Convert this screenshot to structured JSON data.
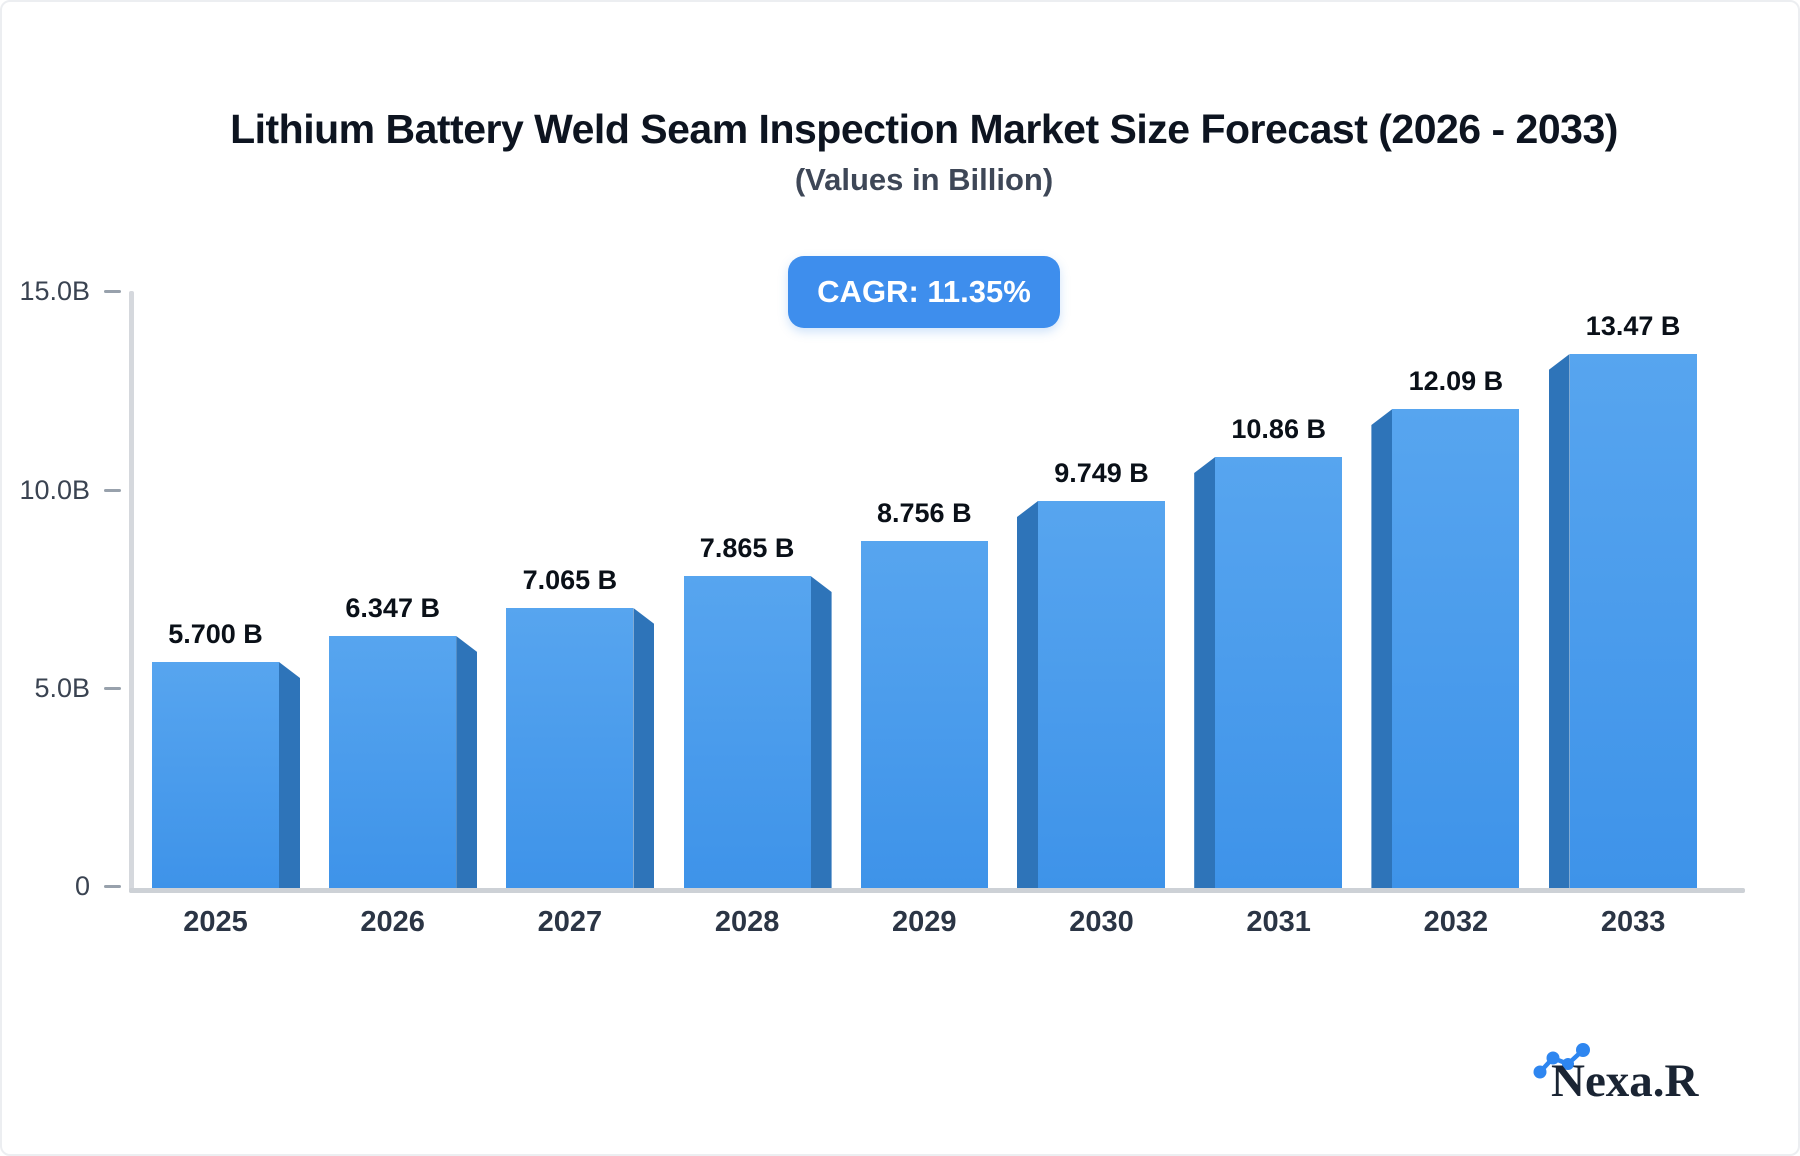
{
  "title": "Lithium Battery Weld Seam Inspection Market Size Forecast (2026 - 2033)",
  "subtitle": "(Values in Billion)",
  "badge": {
    "label": "CAGR: 11.35%",
    "bg_color": "#3E8EED",
    "text_color": "#FFFFFF"
  },
  "brand": {
    "name": "Nexa.R",
    "icon": "line-chart-icon",
    "icon_color": "#2E86F0",
    "text_color": "#1A2433"
  },
  "colors": {
    "bar_face_top": "#57A5EF",
    "bar_face_bottom": "#3E93E9",
    "bar_side": "#2E74B9",
    "axis_line": "#D5D8DD",
    "baseline": "#CDD1D6",
    "tick": "#98A1AC",
    "value_label": "#0A1018",
    "x_label": "#2B3545",
    "y_label": "#3A4351"
  },
  "chart_data": {
    "type": "bar",
    "title": "Lithium Battery Weld Seam Inspection Market Size Forecast (2026 - 2033)",
    "subtitle": "(Values in Billion)",
    "categories": [
      "2025",
      "2026",
      "2027",
      "2028",
      "2029",
      "2030",
      "2031",
      "2032",
      "2033"
    ],
    "values": [
      5.7,
      6.347,
      7.065,
      7.865,
      8.756,
      9.749,
      10.86,
      12.09,
      13.47
    ],
    "value_labels": [
      "5.700 B",
      "6.347 B",
      "7.065 B",
      "7.865 B",
      "8.756 B",
      "9.749 B",
      "10.86 B",
      "12.09 B",
      "13.47 B"
    ],
    "xlabel": "",
    "ylabel": "",
    "ylim": [
      0,
      15
    ],
    "yticks": [
      {
        "value": 15,
        "label": "15.0B"
      },
      {
        "value": 10,
        "label": "10.0B"
      },
      {
        "value": 5,
        "label": "5.0B"
      },
      {
        "value": 0,
        "label": "0"
      }
    ],
    "grid": false,
    "legend": false,
    "annotations": [
      "CAGR: 11.35%"
    ],
    "bar_style": "3d-perspective"
  }
}
